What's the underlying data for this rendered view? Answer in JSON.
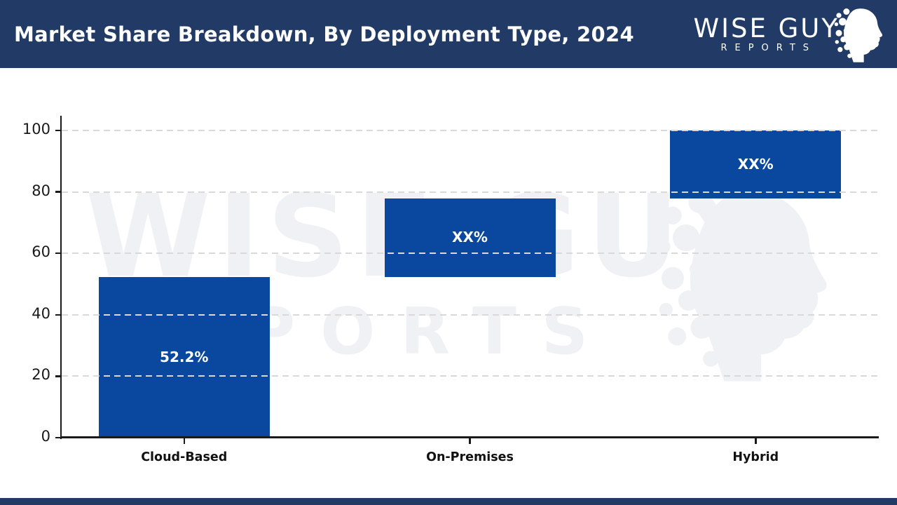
{
  "header": {
    "title": "Market Share Breakdown, By Deployment Type, 2024",
    "logo": {
      "line1": "WISE GUY",
      "line2": "REPORTS"
    }
  },
  "watermark": {
    "line1": "WISE GUY",
    "line2": "REPORTS"
  },
  "colors": {
    "header_bg": "#213a66",
    "bar": "#0a479f",
    "gridline": "#d9d9d9",
    "watermark": "#f0f1f4",
    "axis": "#1a1a1a",
    "bar_label_text": "#ffffff"
  },
  "chart_data": {
    "type": "bar",
    "subtype": "waterfall (floating segment bars)",
    "title": "Market Share Breakdown, By Deployment Type, 2024",
    "categories": [
      "Cloud-Based",
      "On-Premises",
      "Hybrid"
    ],
    "segments": [
      {
        "category": "Cloud-Based",
        "start": 0,
        "end": 52.2,
        "label": "52.2%"
      },
      {
        "category": "On-Premises",
        "start": 52.2,
        "end": 77.8,
        "label": "XX%"
      },
      {
        "category": "Hybrid",
        "start": 77.8,
        "end": 100,
        "label": "XX%"
      }
    ],
    "xlabel": "",
    "ylabel": "",
    "ylim": [
      0,
      100
    ],
    "yticks": [
      0,
      20,
      40,
      60,
      80,
      100
    ],
    "grid": "horizontal dashed, drawn above bars",
    "legend": "none"
  }
}
